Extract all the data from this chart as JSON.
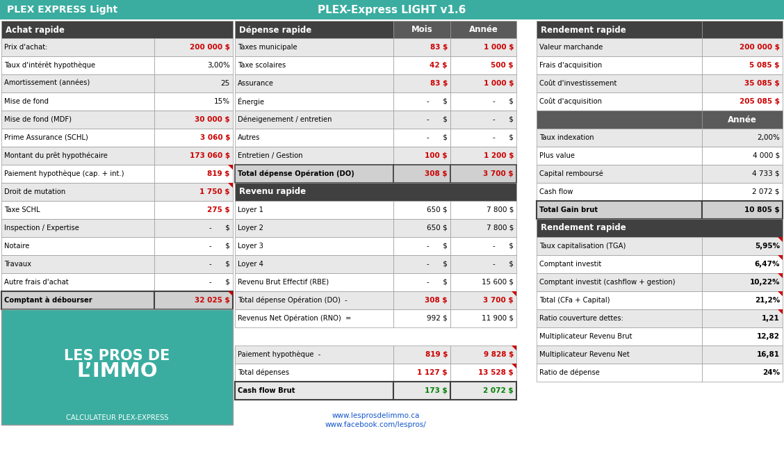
{
  "header_color": "#3aada0",
  "section_header_color": "#404040",
  "red_value_color": "#cc0000",
  "green_value_color": "#008000",
  "black_value_color": "#000000",
  "bg_light": "#e8e8e8",
  "bg_white": "#ffffff",
  "bg_total": "#d0d0d0",
  "border_color": "#999999",
  "title_left": "PLEX EXPRESS Light",
  "title_center": "PLEX-Express LIGHT v1.6",
  "col1_header": "Achat rapide",
  "col1_rows": [
    [
      "Prix d'achat:",
      "200 000 $",
      "red",
      "light"
    ],
    [
      "Taux d'intérêt hypothèque",
      "3,00%",
      "black",
      "white"
    ],
    [
      "Amortissement (années)",
      "25",
      "black",
      "light"
    ],
    [
      "Mise de fond",
      "15%",
      "black",
      "white"
    ],
    [
      "Mise de fond (MDF)",
      "30 000 $",
      "red",
      "light"
    ],
    [
      "Prime Assurance (SCHL)",
      "3 060 $",
      "red",
      "white"
    ],
    [
      "Montant du prêt hypothécaire",
      "173 060 $",
      "red",
      "light"
    ],
    [
      "Paiement hypothèque (cap. + int.)",
      "819 $",
      "red",
      "white"
    ],
    [
      "Droit de mutation",
      "1 750 $",
      "red",
      "light"
    ],
    [
      "Taxe SCHL",
      "275 $",
      "red",
      "white"
    ],
    [
      "Inspection / Expertise",
      "-      $",
      "black",
      "light"
    ],
    [
      "Notaire",
      "-      $",
      "black",
      "white"
    ],
    [
      "Travaux",
      "-      $",
      "black",
      "light"
    ],
    [
      "Autre frais d'achat",
      "-      $",
      "black",
      "white"
    ],
    [
      "Comptant à débourser",
      "32 025 $",
      "red",
      "total"
    ]
  ],
  "col2_header": "Dépense rapide",
  "col2_rows": [
    [
      "Taxes municipale",
      "83 $",
      "1 000 $",
      "red",
      "light"
    ],
    [
      "Taxe scolaires",
      "42 $",
      "500 $",
      "red",
      "white"
    ],
    [
      "Assurance",
      "83 $",
      "1 000 $",
      "red",
      "light"
    ],
    [
      "Énergie",
      "-      $",
      "-      $",
      "black",
      "white"
    ],
    [
      "Déneigenement / entretien",
      "-      $",
      "-      $",
      "black",
      "light"
    ],
    [
      "Autres",
      "-      $",
      "-      $",
      "black",
      "white"
    ],
    [
      "Entretien / Gestion",
      "100 $",
      "1 200 $",
      "red",
      "light"
    ],
    [
      "Total dépense Opération (DO)",
      "308 $",
      "3 700 $",
      "red",
      "total_dark"
    ]
  ],
  "col2b_header": "Revenu rapide",
  "col2b_rows": [
    [
      "Loyer 1",
      "650 $",
      "7 800 $",
      "black",
      "white"
    ],
    [
      "Loyer 2",
      "650 $",
      "7 800 $",
      "black",
      "light"
    ],
    [
      "Loyer 3",
      "-      $",
      "-      $",
      "black",
      "white"
    ],
    [
      "Loyer 4",
      "-      $",
      "-      $",
      "black",
      "light"
    ],
    [
      "Revenu Brut Effectif (RBE)",
      "-      $",
      "15 600 $",
      "black",
      "white"
    ]
  ],
  "col2_summary1": [
    [
      "Total dépense Opération (DO)  -",
      "308 $",
      "3 700 $",
      "red"
    ],
    [
      "Revenus Net Opération (RNO)  =",
      "992 $",
      "11 900 $",
      "black"
    ]
  ],
  "col2_summary2": [
    [
      "Paiement hypothèque  -",
      "819 $",
      "9 828 $",
      "red"
    ],
    [
      "Total dépenses",
      "1 127 $",
      "13 528 $",
      "red"
    ],
    [
      "Cash flow Brut",
      "173 $",
      "2 072 $",
      "green"
    ]
  ],
  "col3_header": "Rendement rapide",
  "col3_rows1": [
    [
      "Valeur marchande",
      "200 000 $",
      "red",
      "light"
    ],
    [
      "Frais d'acquisition",
      "5 085 $",
      "red",
      "white"
    ],
    [
      "Coût d'investissement",
      "35 085 $",
      "red",
      "light"
    ],
    [
      "Coût d'acquisition",
      "205 085 $",
      "red",
      "white"
    ]
  ],
  "col3_rows2": [
    [
      "Taux indexation",
      "2,00%",
      "black",
      "light"
    ],
    [
      "Plus value",
      "4 000 $",
      "black",
      "white"
    ],
    [
      "Capital remboursé",
      "4 733 $",
      "black",
      "light"
    ],
    [
      "Cash flow",
      "2 072 $",
      "black",
      "white"
    ],
    [
      "Total Gain brut",
      "10 805 $",
      "black",
      "total"
    ]
  ],
  "col3b_header": "Rendement rapide",
  "col3b_rows": [
    [
      "Taux capitalisation (TGA)",
      "5,95%",
      "black",
      "light"
    ],
    [
      "Comptant investit",
      "6,47%",
      "black",
      "white"
    ],
    [
      "Comptant investit (cashflow + gestion)",
      "10,22%",
      "black",
      "light"
    ],
    [
      "Total (CFa + Capital)",
      "21,2%",
      "black",
      "white"
    ],
    [
      "Ratio couverture dettes:",
      "1,21",
      "black",
      "light"
    ],
    [
      "Multiplicateur Revenu Brut",
      "12,82",
      "black",
      "white"
    ],
    [
      "Multiplicateur Revenu Net",
      "16,81",
      "black",
      "light"
    ],
    [
      "Ratio de dépense",
      "24%",
      "black",
      "white"
    ]
  ],
  "links": [
    "www.lesprosdelimmo.ca",
    "www.facebook.com/lespros/"
  ],
  "logo_text1": "LES PROS DE",
  "logo_text2": "L’IMMO",
  "logo_subtext": "CALCULATEUR PLEX-EXPRESS"
}
